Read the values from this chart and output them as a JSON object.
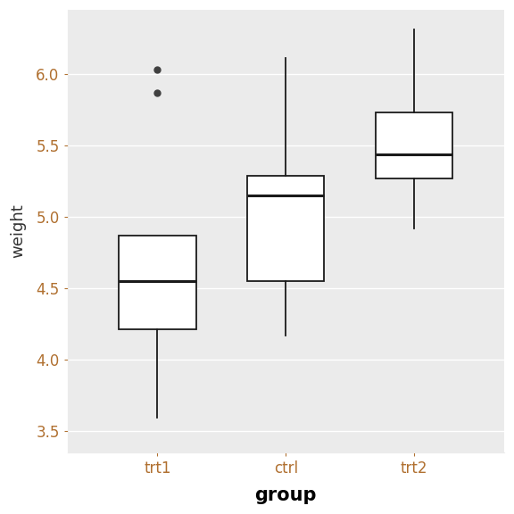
{
  "title": "",
  "xlabel": "group",
  "ylabel": "weight",
  "xlabel_fontsize": 15,
  "ylabel_fontsize": 13,
  "tick_fontsize": 12,
  "plot_background_color": "#EBEBEB",
  "fig_background_color": "#FFFFFF",
  "grid_color": "#FFFFFF",
  "box_facecolor": "#FFFFFF",
  "box_edgecolor": "#1A1A1A",
  "median_color": "#1A1A1A",
  "whisker_color": "#1A1A1A",
  "flier_color": "#404040",
  "tick_color": "#B07030",
  "xlabel_color": "#000000",
  "ylabel_color": "#333333",
  "categories": [
    "trt1",
    "ctrl",
    "trt2"
  ],
  "ylim": [
    3.35,
    6.45
  ],
  "yticks": [
    3.5,
    4.0,
    4.5,
    5.0,
    5.5,
    6.0
  ],
  "boxes": {
    "trt1": {
      "q1": 4.21,
      "median": 4.55,
      "q3": 4.87,
      "whisker_low": 3.59,
      "whisker_high": 4.87,
      "fliers": [
        5.87,
        6.03
      ]
    },
    "ctrl": {
      "q1": 4.55,
      "median": 5.15,
      "q3": 5.29,
      "whisker_low": 4.17,
      "whisker_high": 6.11,
      "fliers": []
    },
    "trt2": {
      "q1": 5.27,
      "median": 5.44,
      "q3": 5.73,
      "whisker_low": 4.92,
      "whisker_high": 6.31,
      "fliers": []
    }
  }
}
